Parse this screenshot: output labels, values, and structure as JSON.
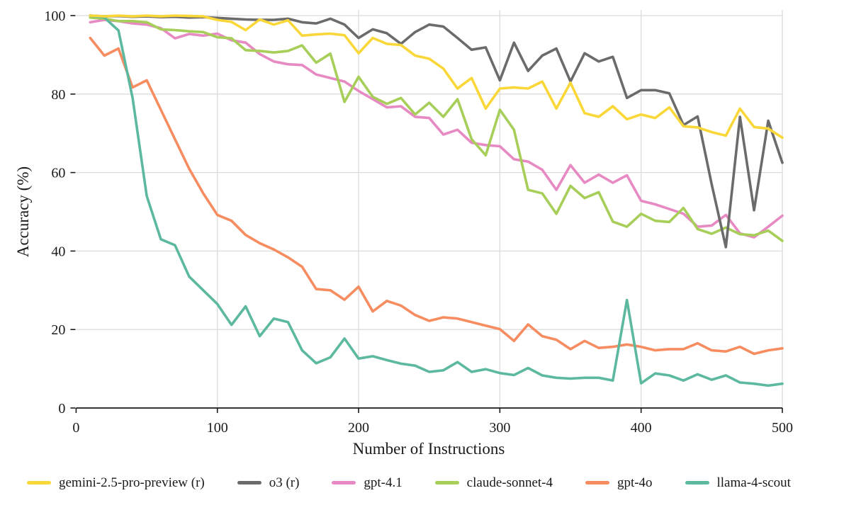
{
  "chart_data": {
    "type": "line",
    "title": "",
    "xlabel": "Number of Instructions",
    "ylabel": "Accuracy (%)",
    "xlim": [
      0,
      500
    ],
    "ylim": [
      0,
      100
    ],
    "x_ticks": [
      0,
      100,
      200,
      300,
      400,
      500
    ],
    "y_ticks": [
      0,
      20,
      40,
      60,
      80,
      100
    ],
    "grid": true,
    "legend_position": "bottom",
    "grid_color": "#dcdcdc",
    "axis_color": "#1a1a1a",
    "x": [
      10,
      20,
      30,
      40,
      50,
      60,
      70,
      80,
      90,
      100,
      110,
      120,
      130,
      140,
      150,
      160,
      170,
      180,
      190,
      200,
      210,
      220,
      230,
      240,
      250,
      260,
      270,
      280,
      290,
      300,
      310,
      320,
      330,
      340,
      350,
      360,
      370,
      380,
      390,
      400,
      410,
      420,
      430,
      440,
      450,
      460,
      470,
      480,
      490,
      500
    ],
    "series": [
      {
        "name": "gemini-2.5-pro-preview (r)",
        "color": "#FAD739",
        "values": [
          100,
          99.8,
          100,
          99.8,
          100,
          99.8,
          100,
          99.9,
          99.8,
          98.9,
          98.4,
          96.3,
          99,
          97.7,
          98.8,
          94.9,
          95.2,
          95.4,
          95,
          90.4,
          94.3,
          92.8,
          92.5,
          89.8,
          89,
          86.5,
          81.4,
          84.1,
          76.3,
          81.4,
          81.7,
          81.4,
          83.2,
          76.3,
          82.9,
          75.1,
          74.2,
          76.9,
          73.6,
          74.8,
          73.9,
          76.6,
          71.8,
          71.5,
          70.3,
          69.4,
          76.3,
          71.6,
          71.2,
          68.9
        ]
      },
      {
        "name": "o3 (r)",
        "color": "#6B6B6B",
        "values": [
          100,
          99.8,
          99.9,
          99.7,
          99.8,
          99.6,
          99.7,
          99.5,
          99.6,
          99.4,
          99.2,
          99,
          98.9,
          98.9,
          99.2,
          98.3,
          98,
          99.2,
          97.7,
          94.3,
          96.5,
          95.5,
          92.8,
          95.8,
          97.7,
          97.2,
          94.3,
          91.3,
          91.9,
          83.5,
          93.1,
          85.9,
          89.8,
          91.6,
          83.2,
          90.4,
          88.3,
          89.5,
          79,
          81,
          81,
          80.2,
          72.1,
          74.3,
          57,
          41,
          74.2,
          50.4,
          73.2,
          62.5
        ]
      },
      {
        "name": "gpt-4.1",
        "color": "#E78AC3",
        "values": [
          98.3,
          98.9,
          98.6,
          98,
          97.7,
          96.8,
          94.2,
          95.3,
          94.9,
          95.4,
          93.7,
          93.1,
          90.2,
          88.3,
          87.6,
          87.4,
          85,
          84.1,
          83.2,
          80.8,
          78.7,
          76.6,
          76.9,
          74.2,
          73.9,
          69.7,
          70.9,
          67.6,
          67,
          66.7,
          63.4,
          62.8,
          60.7,
          55.6,
          61.9,
          57.4,
          59.5,
          57.4,
          59.3,
          52.8,
          51.9,
          50.7,
          49.5,
          46.2,
          46.5,
          49.2,
          44.5,
          43.5,
          46.2,
          49
        ]
      },
      {
        "name": "claude-sonnet-4",
        "color": "#A6CE58",
        "values": [
          99.5,
          99.2,
          98.6,
          98.6,
          98.3,
          96.5,
          96.3,
          96,
          95.8,
          94.5,
          94.2,
          91.2,
          91,
          90.6,
          91,
          92.4,
          88,
          90.3,
          78,
          84.4,
          79.3,
          77.5,
          79,
          74.8,
          77.8,
          74.2,
          78.7,
          68.5,
          64.4,
          76,
          70.9,
          55.6,
          54.7,
          49.5,
          56.6,
          53.5,
          55,
          47.5,
          46.2,
          49.5,
          47.7,
          47.4,
          51,
          45.6,
          44.4,
          46,
          44.3,
          44,
          45.2,
          42.6
        ]
      },
      {
        "name": "gpt-4o",
        "color": "#F68C5F",
        "values": [
          94.3,
          89.8,
          91.6,
          81.7,
          83.5,
          76,
          68.5,
          61,
          54.7,
          49.2,
          47.7,
          44.1,
          42,
          40.4,
          38.4,
          36,
          30.3,
          30,
          27.6,
          30.9,
          24.6,
          27.3,
          26.1,
          23.7,
          22.2,
          23.1,
          22.8,
          21.9,
          21,
          20.1,
          17.1,
          21.3,
          18.3,
          17.4,
          15,
          17.1,
          15.3,
          15.6,
          16.2,
          15.6,
          14.7,
          15,
          15,
          16.5,
          14.7,
          14.4,
          15.6,
          13.8,
          14.7,
          15.2
        ]
      },
      {
        "name": "llama-4-scout",
        "color": "#5CB9A0",
        "values": [
          100,
          99.5,
          96.2,
          79,
          54,
          43,
          41.5,
          33.5,
          30,
          26.5,
          21.2,
          25.9,
          18.3,
          22.8,
          21.9,
          14.7,
          11.4,
          12.9,
          17.7,
          12.6,
          13.2,
          12.2,
          11.3,
          10.8,
          9.2,
          9.6,
          11.7,
          9.2,
          9.9,
          8.9,
          8.4,
          10.2,
          8.3,
          7.7,
          7.5,
          7.7,
          7.7,
          7,
          27.5,
          6.3,
          8.8,
          8.3,
          7,
          8.6,
          7.2,
          8.3,
          6.5,
          6.2,
          5.7,
          6.2
        ]
      }
    ]
  }
}
